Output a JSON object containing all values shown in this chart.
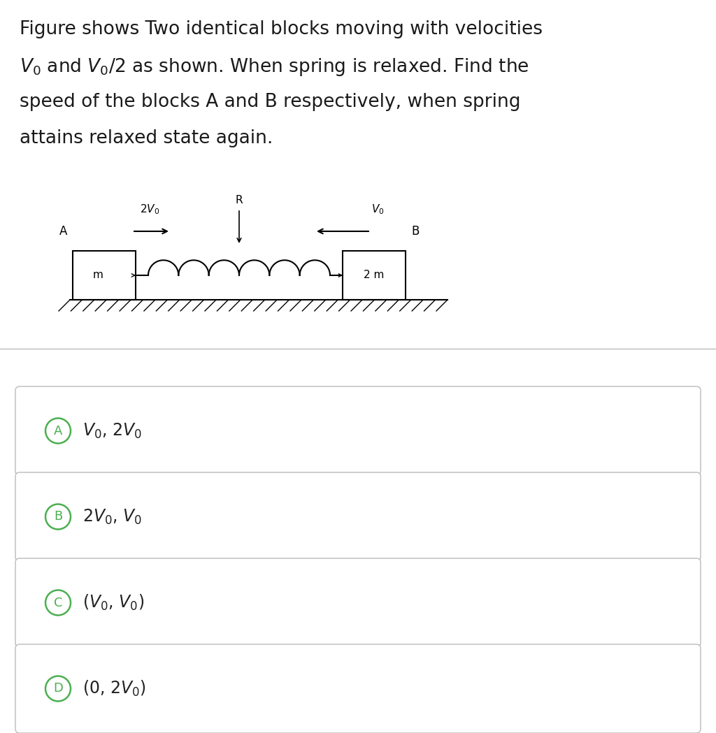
{
  "bg_color": "#ffffff",
  "title_lines": [
    "Figure shows Two identical blocks moving with velocities",
    "$V_0$ and $V_0$/2 as shown. When spring is relaxed. Find the",
    "speed of the blocks A and B respectively, when spring",
    "attains relaxed state again."
  ],
  "option_circle_color": "#4caf50",
  "option_text_color": "#212121",
  "divider_color": "#bbbbbb",
  "option_labels": [
    "A",
    "B",
    "C",
    "D"
  ],
  "option_texts": [
    "$V_0$, $2V_0$",
    "$2V_0$, $V_0$",
    "($V_0$, $V_0$)",
    "(0, $2V_0$)"
  ],
  "title_fontsize": 19,
  "option_fontsize": 17
}
